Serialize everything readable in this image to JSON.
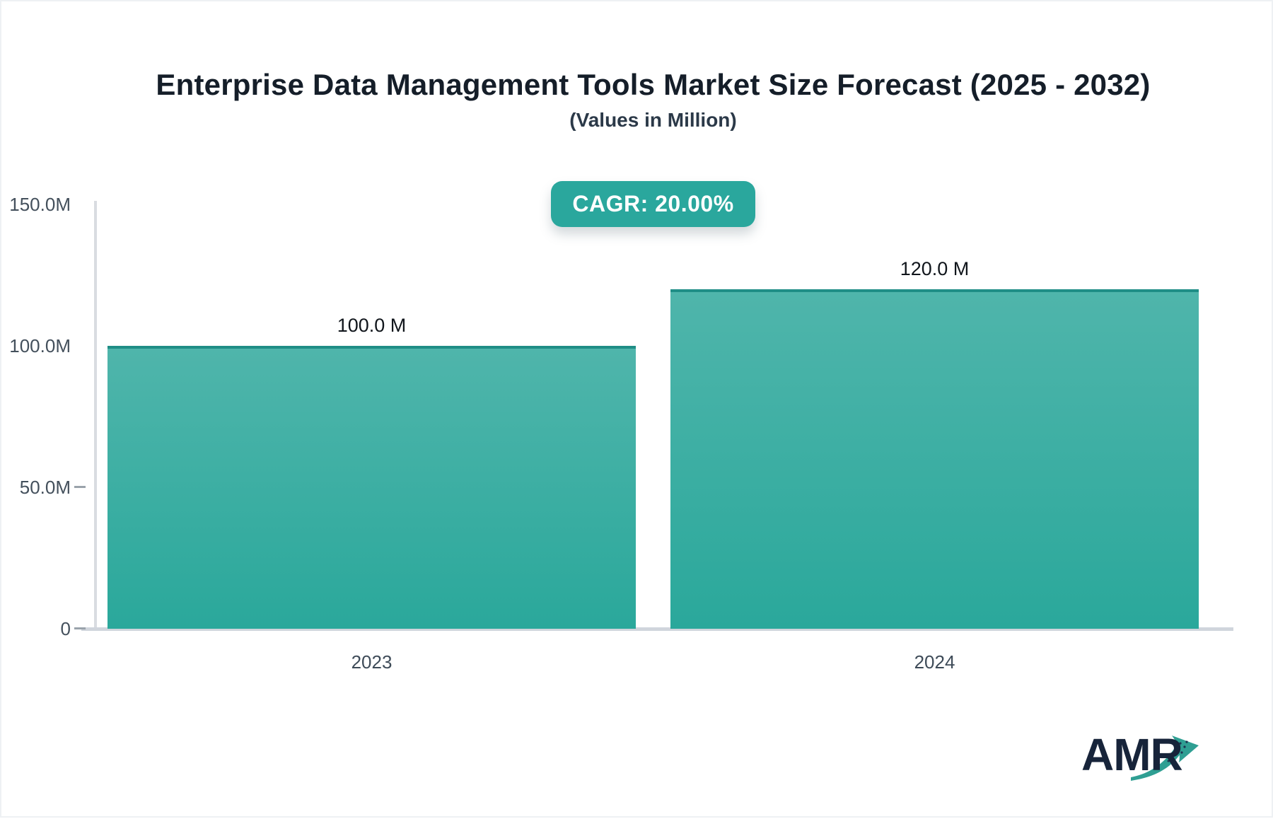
{
  "header": {
    "title": "Enterprise Data Management Tools Market Size Forecast (2025 - 2032)",
    "subtitle": "(Values in Million)",
    "cagr_label": "CAGR: 20.00%"
  },
  "chart_data": {
    "type": "bar",
    "title": "Enterprise Data Management Tools Market Size Forecast (2025 - 2032)",
    "subtitle": "(Values in Million)",
    "unit": "Million",
    "cagr_percent": "20.00%",
    "categories": [
      "2023",
      "2024"
    ],
    "values": [
      100,
      120
    ],
    "value_labels": [
      "100.0 M",
      "120.0 M"
    ],
    "ylim": [
      0,
      150
    ],
    "yticks": [
      {
        "value": 150,
        "label": "150.0M",
        "dash": false
      },
      {
        "value": 100,
        "label": "100.0M",
        "dash": false
      },
      {
        "value": 50,
        "label": "50.0M",
        "dash": true
      },
      {
        "value": 0,
        "label": "0",
        "dash": true
      }
    ],
    "grid": false,
    "legend_position": "none"
  },
  "colors": {
    "badge_bg": "#2aa79d",
    "bar_gradient_top": "#4fb5ab",
    "bar_gradient_bottom": "#2aa89b",
    "bar_top_border": "#1f8e86",
    "axis_line": "#d9dce1",
    "baseline": "#d0d5dc",
    "title_text": "#151e29",
    "tick_text": "#44505c",
    "logo_text": "#17243a",
    "logo_arrow": "#2f9f93"
  },
  "logo": {
    "text": "AMR"
  }
}
